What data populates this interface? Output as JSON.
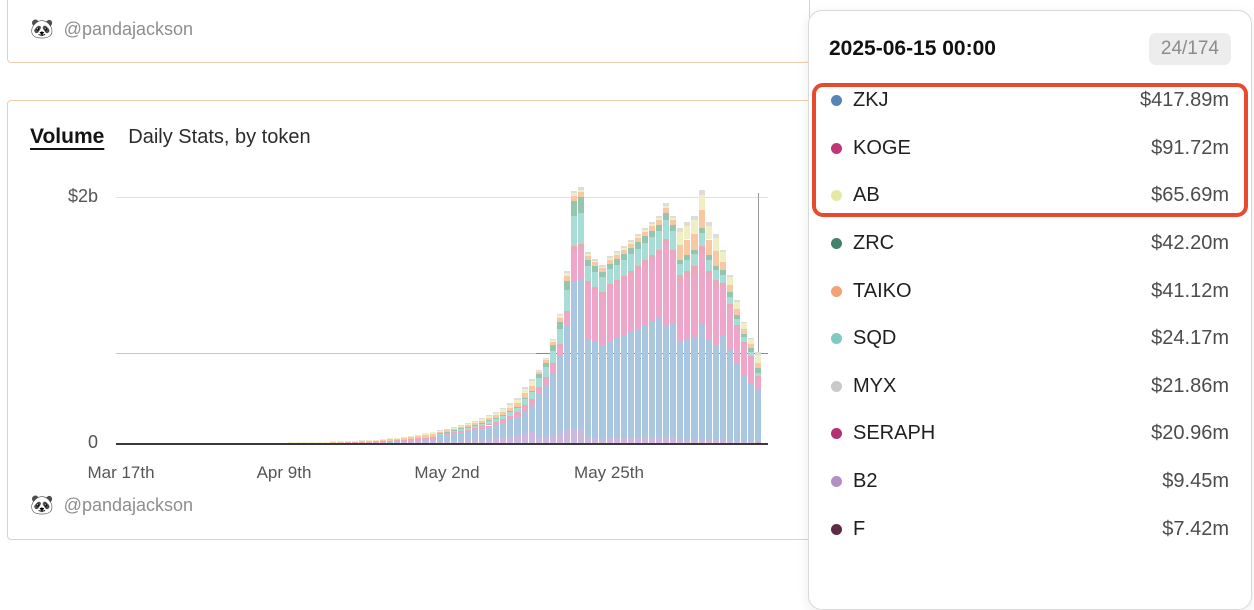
{
  "top_bar": {
    "handle": "@pandajackson",
    "icon": "panda-emoji"
  },
  "card": {
    "title": "Volume",
    "subtitle": "Daily Stats, by token",
    "watermark_handle": "@pandajackson",
    "border_color": "#eeceac"
  },
  "tooltip": {
    "timestamp": "2025-06-15 00:00",
    "badge": "24/174",
    "highlight_color": "#e84a2d",
    "rows": [
      {
        "token": "ZKJ",
        "value": "$417.89m",
        "dot": "#5585b5",
        "highlighted": true
      },
      {
        "token": "KOGE",
        "value": "$91.72m",
        "dot": "#c23579",
        "highlighted": true
      },
      {
        "token": "AB",
        "value": "$65.69m",
        "dot": "#e5e9a5",
        "highlighted": true
      },
      {
        "token": "ZRC",
        "value": "$42.20m",
        "dot": "#41836a",
        "highlighted": false
      },
      {
        "token": "TAIKO",
        "value": "$41.12m",
        "dot": "#f2a274",
        "highlighted": false
      },
      {
        "token": "SQD",
        "value": "$24.17m",
        "dot": "#7cccc3",
        "highlighted": false
      },
      {
        "token": "MYX",
        "value": "$21.86m",
        "dot": "#c9c9c9",
        "highlighted": false
      },
      {
        "token": "SERAPH",
        "value": "$20.96m",
        "dot": "#b53070",
        "highlighted": false
      },
      {
        "token": "B2",
        "value": "$9.45m",
        "dot": "#b290c5",
        "highlighted": false
      },
      {
        "token": "F",
        "value": "$7.42m",
        "dot": "#5e2a45",
        "highlighted": false
      }
    ]
  },
  "chart_data": {
    "type": "bar",
    "stacked": true,
    "title": "Volume Daily Stats, by token",
    "x_start_date": "2025-03-17",
    "x_end_date": "2025-06-15",
    "days": 91,
    "ylim_usd_b": [
      0,
      2
    ],
    "ytick_labels": [
      "0",
      "$2b"
    ],
    "xtick_labels": [
      "Mar 17th",
      "Apr 9th",
      "May 2nd",
      "May 25th"
    ],
    "xtick_day_index": [
      0,
      23,
      46,
      69
    ],
    "grid": "horizontal-only",
    "legend_position": "tooltip-panel-right",
    "hover": {
      "date": "2025-06-15 00:00",
      "tokens_shown": "24/174",
      "total_usd_m": 742.48
    },
    "series_order": [
      "B2",
      "F",
      "ZKJ",
      "KOGE",
      "SERAPH",
      "SQD",
      "ZRC",
      "TAIKO",
      "AB",
      "MYX"
    ],
    "series_colors": {
      "B2": "#cdb9df",
      "F": "#c9a9bb",
      "ZKJ": "#aac7e2",
      "KOGE": "#eea6ca",
      "SERAPH": "#eba8b8",
      "SQD": "#a7ddd6",
      "ZRC": "#93c6ad",
      "TAIKO": "#f8c7a4",
      "AB": "#f0efc4",
      "MYX": "#dcdcdc"
    },
    "bars_usd_m": [
      [
        0.5,
        0,
        0.1,
        0.3,
        0.6,
        0,
        0,
        0.9,
        0.5,
        0
      ],
      [
        0.5,
        0,
        0.1,
        0.3,
        0.6,
        0,
        0,
        0.9,
        0.5,
        0
      ],
      [
        0.5,
        0,
        0.1,
        0.3,
        0.6,
        0,
        0,
        0.9,
        0.5,
        0
      ],
      [
        0.5,
        0,
        0.1,
        0.3,
        0.6,
        0,
        0,
        0.9,
        0.5,
        0
      ],
      [
        0.5,
        0,
        0.1,
        0.3,
        0.6,
        0,
        0,
        0.9,
        0.5,
        0
      ],
      [
        0.5,
        0,
        0.1,
        0.3,
        0.6,
        0,
        0,
        0.9,
        0.5,
        0
      ],
      [
        0.5,
        0,
        0.1,
        0.3,
        0.6,
        0,
        0,
        0.9,
        0.5,
        0
      ],
      [
        0.5,
        0,
        0.1,
        0.3,
        0.6,
        0,
        0,
        0.9,
        0.5,
        0
      ],
      [
        0.5,
        0,
        0.1,
        0.3,
        0.6,
        0,
        0,
        0.9,
        0.5,
        0
      ],
      [
        0.5,
        0,
        0.1,
        0.3,
        0.6,
        0,
        0,
        0.9,
        0.5,
        0
      ],
      [
        0.5,
        0,
        0.1,
        0.3,
        0.6,
        0,
        0,
        0.9,
        0.5,
        0
      ],
      [
        0.5,
        0,
        0.1,
        0.3,
        0.6,
        0,
        0,
        0.9,
        0.5,
        0
      ],
      [
        0.5,
        0,
        0.1,
        0.3,
        0.6,
        0,
        0,
        0.9,
        0.5,
        0
      ],
      [
        0.5,
        0,
        0.1,
        0.3,
        0.6,
        0,
        0,
        0.9,
        0.5,
        0
      ],
      [
        0.5,
        0,
        0.1,
        0.3,
        0.6,
        0,
        0,
        0.9,
        0.5,
        0
      ],
      [
        0.5,
        0,
        0.1,
        0.3,
        0.6,
        0,
        0,
        0.9,
        0.5,
        0
      ],
      [
        0.5,
        0,
        0.1,
        0.3,
        0.6,
        0,
        0,
        0.9,
        0.5,
        0
      ],
      [
        0.5,
        0,
        0.1,
        0.3,
        0.6,
        0,
        0,
        0.9,
        0.5,
        0
      ],
      [
        0.5,
        0,
        0.1,
        0.3,
        0.6,
        0,
        0,
        0.9,
        0.5,
        0
      ],
      [
        0.5,
        0,
        0.1,
        0.3,
        0.6,
        0,
        0,
        0.9,
        0.5,
        0
      ],
      [
        2.8,
        0,
        0.4,
        0.6,
        1,
        0,
        0,
        2,
        1.2,
        0
      ],
      [
        3.2,
        0,
        0.5,
        0.7,
        1.1,
        0,
        0,
        2.2,
        1.3,
        0
      ],
      [
        3.5,
        0,
        0.5,
        0.8,
        1.2,
        0,
        0,
        2.5,
        1.5,
        0
      ],
      [
        3.9,
        0,
        0.6,
        0.9,
        1.3,
        0,
        0,
        2.7,
        1.6,
        0
      ],
      [
        4.2,
        0,
        0.6,
        1,
        1.4,
        0,
        0,
        3,
        1.8,
        0
      ],
      [
        4.7,
        0,
        0.7,
        1.1,
        1.6,
        0,
        0,
        3.4,
        2,
        0
      ],
      [
        5.3,
        0,
        0.8,
        1.2,
        1.8,
        0,
        0,
        3.7,
        2.2,
        0
      ],
      [
        5.8,
        0,
        0.8,
        1.3,
        2,
        0,
        0,
        4.1,
        2.5,
        0
      ],
      [
        6.3,
        0,
        0.9,
        1.4,
        2.2,
        0,
        0,
        4.5,
        2.7,
        0
      ],
      [
        7,
        0,
        1,
        1.6,
        2.4,
        0,
        0,
        5,
        3,
        0
      ],
      [
        7.7,
        0,
        1.1,
        1.8,
        2.6,
        0,
        0,
        5.5,
        3.3,
        0
      ],
      [
        8.4,
        0,
        1.2,
        1.9,
        2.9,
        0,
        0,
        6,
        3.6,
        0
      ],
      [
        9.1,
        0,
        1.3,
        2.1,
        3.1,
        0,
        0,
        6.5,
        3.9,
        0
      ],
      [
        9.8,
        0,
        1.4,
        2.2,
        3.4,
        0,
        0,
        7,
        4.2,
        0
      ],
      [
        10.5,
        0,
        1.5,
        2.4,
        3.6,
        0,
        0,
        7.5,
        4.5,
        0
      ],
      [
        11.6,
        0,
        1.7,
        2.6,
        4,
        0,
        0,
        8.2,
        5,
        0
      ],
      [
        12.2,
        0,
        1.8,
        2.8,
        4.2,
        0,
        0,
        8.8,
        5.2,
        0
      ],
      [
        14,
        0,
        2,
        3.2,
        4.8,
        0,
        0,
        10,
        6,
        0
      ],
      [
        15.8,
        0,
        2.2,
        3.6,
        5.4,
        0,
        0,
        11.2,
        6.8,
        0
      ],
      [
        17.5,
        0,
        2.5,
        4,
        6,
        0,
        0,
        12.5,
        7.5,
        0
      ],
      [
        20,
        0,
        3,
        4.6,
        7,
        0,
        0,
        14.5,
        8.7,
        0
      ],
      [
        23,
        0,
        3.3,
        5.3,
        8,
        0,
        0,
        16.5,
        10,
        0
      ],
      [
        26,
        0,
        4,
        6,
        9,
        0,
        0,
        19,
        11,
        0
      ],
      [
        30,
        0,
        4.5,
        7,
        10,
        0,
        0,
        21,
        13,
        0
      ],
      [
        33,
        0,
        5,
        8,
        11.5,
        0,
        0,
        24,
        14,
        0
      ],
      [
        20,
        0,
        44,
        7,
        5.5,
        11,
        2,
        9,
        9,
        3
      ],
      [
        22,
        0,
        50,
        7.5,
        6,
        12.5,
        2.5,
        10,
        10,
        4
      ],
      [
        25,
        0,
        56,
        8.4,
        7,
        14,
        3,
        11,
        11,
        4
      ],
      [
        28,
        0,
        62,
        9.3,
        8,
        15.5,
        3,
        12.5,
        12.5,
        5
      ],
      [
        31,
        0,
        68,
        10,
        8.5,
        17,
        3.5,
        13.5,
        13.5,
        5
      ],
      [
        34,
        0,
        76,
        11.4,
        9.5,
        19,
        4,
        15,
        15,
        6
      ],
      [
        38,
        0,
        84,
        12.6,
        10.5,
        21,
        4,
        17,
        17,
        6
      ],
      [
        42,
        0,
        94,
        14,
        12,
        23.5,
        5,
        19,
        19,
        7
      ],
      [
        47,
        0,
        104,
        15.6,
        13,
        26,
        5,
        21,
        21,
        8
      ],
      [
        52,
        0,
        116,
        17.4,
        14.5,
        29,
        6,
        23,
        23,
        9
      ],
      [
        59,
        0,
        132,
        20,
        16.5,
        33,
        7,
        26,
        26,
        10
      ],
      [
        67,
        0,
        148,
        22,
        18.5,
        37,
        7,
        30,
        30,
        11
      ],
      [
        83,
        0,
        184,
        28,
        23,
        46,
        9,
        37,
        37,
        13
      ],
      [
        95,
        0,
        212,
        32,
        27,
        53,
        11,
        42,
        42,
        15
      ],
      [
        48,
        0,
        360,
        42,
        12,
        72,
        30,
        18,
        12,
        6
      ],
      [
        56,
        0,
        420,
        49,
        14,
        84,
        35,
        21,
        14,
        7
      ],
      [
        68,
        0,
        510,
        60,
        17,
        102,
        43,
        26,
        17,
        9
      ],
      [
        84,
        0,
        630,
        74,
        21,
        126,
        53,
        32,
        21,
        11
      ],
      [
        112,
        0,
        840,
        98,
        28,
        168,
        70,
        42,
        28,
        14
      ],
      [
        123,
        0,
        1190,
        246,
        41,
        246,
        123,
        41,
        20,
        20
      ],
      [
        125,
        0,
        1206,
        250,
        42,
        250,
        125,
        42,
        20,
        20
      ],
      [
        47,
        0,
        806,
        434,
        31,
        124,
        47,
        31,
        16,
        16
      ],
      [
        45,
        0,
        780,
        420,
        30,
        120,
        45,
        30,
        15,
        15
      ],
      [
        44,
        0,
        754,
        406,
        29,
        116,
        44,
        29,
        14,
        14
      ],
      [
        46,
        0,
        790,
        426,
        30,
        122,
        46,
        30,
        15,
        15
      ],
      [
        47,
        0,
        811,
        437,
        31,
        125,
        47,
        31,
        16,
        15
      ],
      [
        48,
        0,
        832,
        448,
        32,
        128,
        48,
        32,
        16,
        16
      ],
      [
        50,
        0,
        858,
        462,
        33,
        132,
        50,
        33,
        16,
        16
      ],
      [
        51,
        0,
        884,
        476,
        34,
        136,
        51,
        34,
        17,
        17
      ],
      [
        53,
        0,
        910,
        490,
        35,
        140,
        53,
        35,
        17,
        17
      ],
      [
        54,
        0,
        936,
        504,
        36,
        144,
        54,
        36,
        18,
        18
      ],
      [
        56,
        0,
        962,
        518,
        37,
        148,
        56,
        37,
        18,
        18
      ],
      [
        59,
        0,
        897,
        663,
        39,
        156,
        59,
        39,
        19,
        19
      ],
      [
        56,
        0,
        925,
        555,
        37,
        148,
        56,
        37,
        18,
        18
      ],
      [
        35,
        0,
        788,
        490,
        53,
        88,
        35,
        122,
        105,
        35
      ],
      [
        36,
        0,
        810,
        504,
        54,
        90,
        36,
        126,
        108,
        36
      ],
      [
        37,
        0,
        832,
        518,
        56,
        92,
        37,
        130,
        111,
        37
      ],
      [
        41,
        0,
        927,
        577,
        62,
        103,
        41,
        144,
        124,
        41
      ],
      [
        36,
        0,
        810,
        504,
        54,
        90,
        36,
        126,
        108,
        36
      ],
      [
        34,
        0,
        765,
        476,
        51,
        85,
        34,
        119,
        102,
        34
      ],
      [
        31,
        0,
        853,
        388,
        31,
        62,
        47,
        62,
        78,
        16
      ],
      [
        27,
        0,
        743,
        338,
        27,
        54,
        41,
        54,
        68,
        14
      ],
      [
        23,
        0,
        633,
        288,
        23,
        46,
        35,
        46,
        58,
        12
      ],
      [
        20,
        0,
        539,
        245,
        20,
        39,
        29,
        39,
        49,
        10
      ],
      [
        17,
        0,
        468,
        213,
        17,
        34,
        26,
        34,
        43,
        9
      ],
      [
        9.45,
        7.42,
        417.89,
        91.72,
        20.96,
        24.17,
        42.2,
        41.12,
        65.69,
        21.86
      ]
    ]
  }
}
